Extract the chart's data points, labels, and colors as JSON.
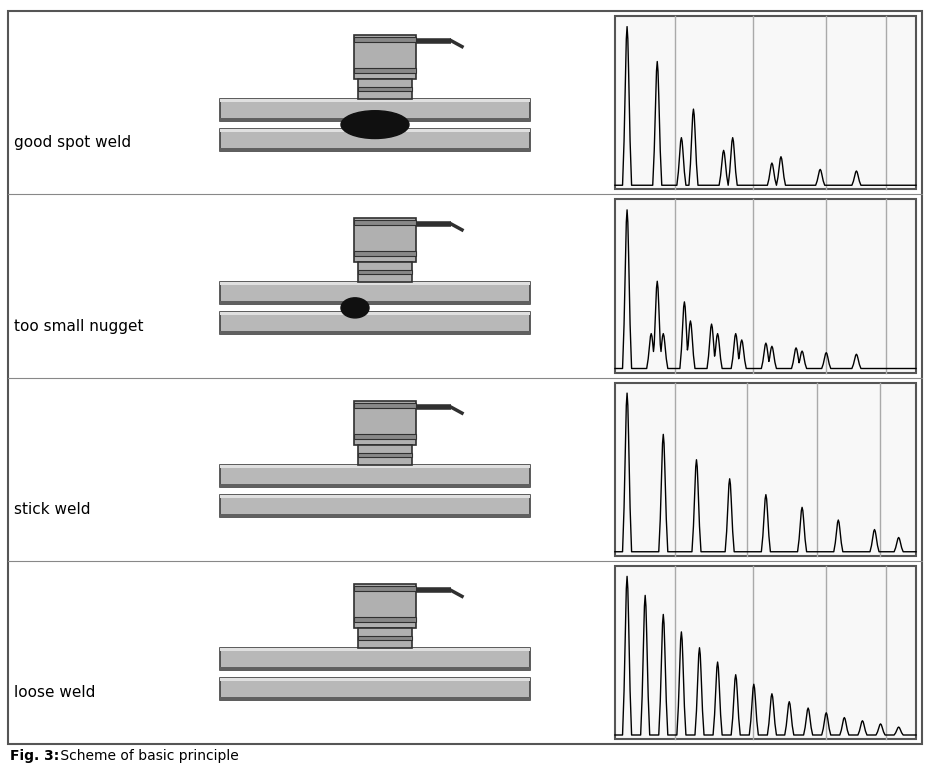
{
  "title": "Fig. 3: Scheme of basic principle",
  "rows": [
    {
      "label": "good spot weld",
      "nugget_size": "large",
      "signal_type": "good"
    },
    {
      "label": "too small nugget",
      "nugget_size": "small",
      "signal_type": "small_nugget"
    },
    {
      "label": "stick weld",
      "nugget_size": "none",
      "signal_type": "stick"
    },
    {
      "label": "loose weld",
      "nugget_size": "none",
      "signal_type": "loose"
    }
  ],
  "figsize": [
    9.3,
    7.76
  ],
  "dpi": 100,
  "border_color": "#555555",
  "plate_fill": "#b8b8b8",
  "plate_edge": "#404040",
  "plate_bevel_light": "#e0e0e0",
  "plate_bevel_dark": "#606060",
  "transducer_fill": "#b0b0b0",
  "transducer_edge": "#303030",
  "transducer_band": "#888888",
  "nugget_fill": "#101010",
  "signal_bg": "#f8f8f8",
  "signal_line": "#000000",
  "gate_color": "#aaaaaa",
  "label_color": "#000000",
  "caption_bold": "Fig. 3:",
  "caption_rest": " Scheme of basic principle"
}
